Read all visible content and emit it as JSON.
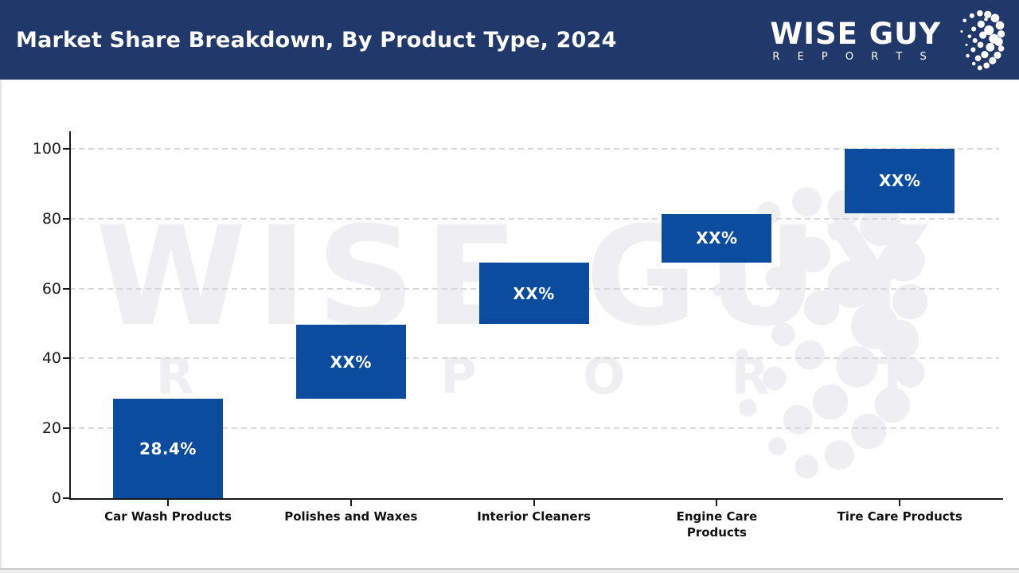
{
  "header": {
    "title": "Market Share Breakdown, By Product Type, 2024",
    "logo_line1": "WISE GUY",
    "logo_line2": "R E P O R T S"
  },
  "icons": {
    "logo_face": "dotted-head-profile-icon"
  },
  "watermark": {
    "line1": "WISE GUY",
    "line2": "R E P O R T S"
  },
  "colors": {
    "header_bg": "#21386B",
    "bar_blue": "#0B4C9F",
    "grid": "#D9D9D9",
    "axis": "#1A1A1A",
    "watermark": "#EFEFF2",
    "bar_label": "#FFFFFF"
  },
  "chart_data": {
    "type": "bar",
    "subtype": "waterfall-floating-segments",
    "title": "Market Share Breakdown, By Product Type, 2024",
    "xlabel": "",
    "ylabel": "",
    "ylim": [
      0,
      105
    ],
    "yticks": [
      0,
      20,
      40,
      60,
      80,
      100
    ],
    "grid": "horizontal-dashed",
    "legend": "none",
    "categories": [
      "Car Wash Products",
      "Polishes and Waxes",
      "Interior Cleaners",
      "Engine Care\nProducts",
      "Tire Care Products"
    ],
    "segments": [
      {
        "category": "Car Wash Products",
        "start": 0,
        "end": 28.4,
        "label": "28.4%"
      },
      {
        "category": "Polishes and Waxes",
        "start": 28.4,
        "end": 49.7,
        "label": "XX%"
      },
      {
        "category": "Interior Cleaners",
        "start": 49.8,
        "end": 67.4,
        "label": "XX%"
      },
      {
        "category": "Engine Care\nProducts",
        "start": 67.5,
        "end": 81.3,
        "label": "XX%"
      },
      {
        "category": "Tire Care Products",
        "start": 81.6,
        "end": 100,
        "label": "XX%"
      }
    ]
  }
}
